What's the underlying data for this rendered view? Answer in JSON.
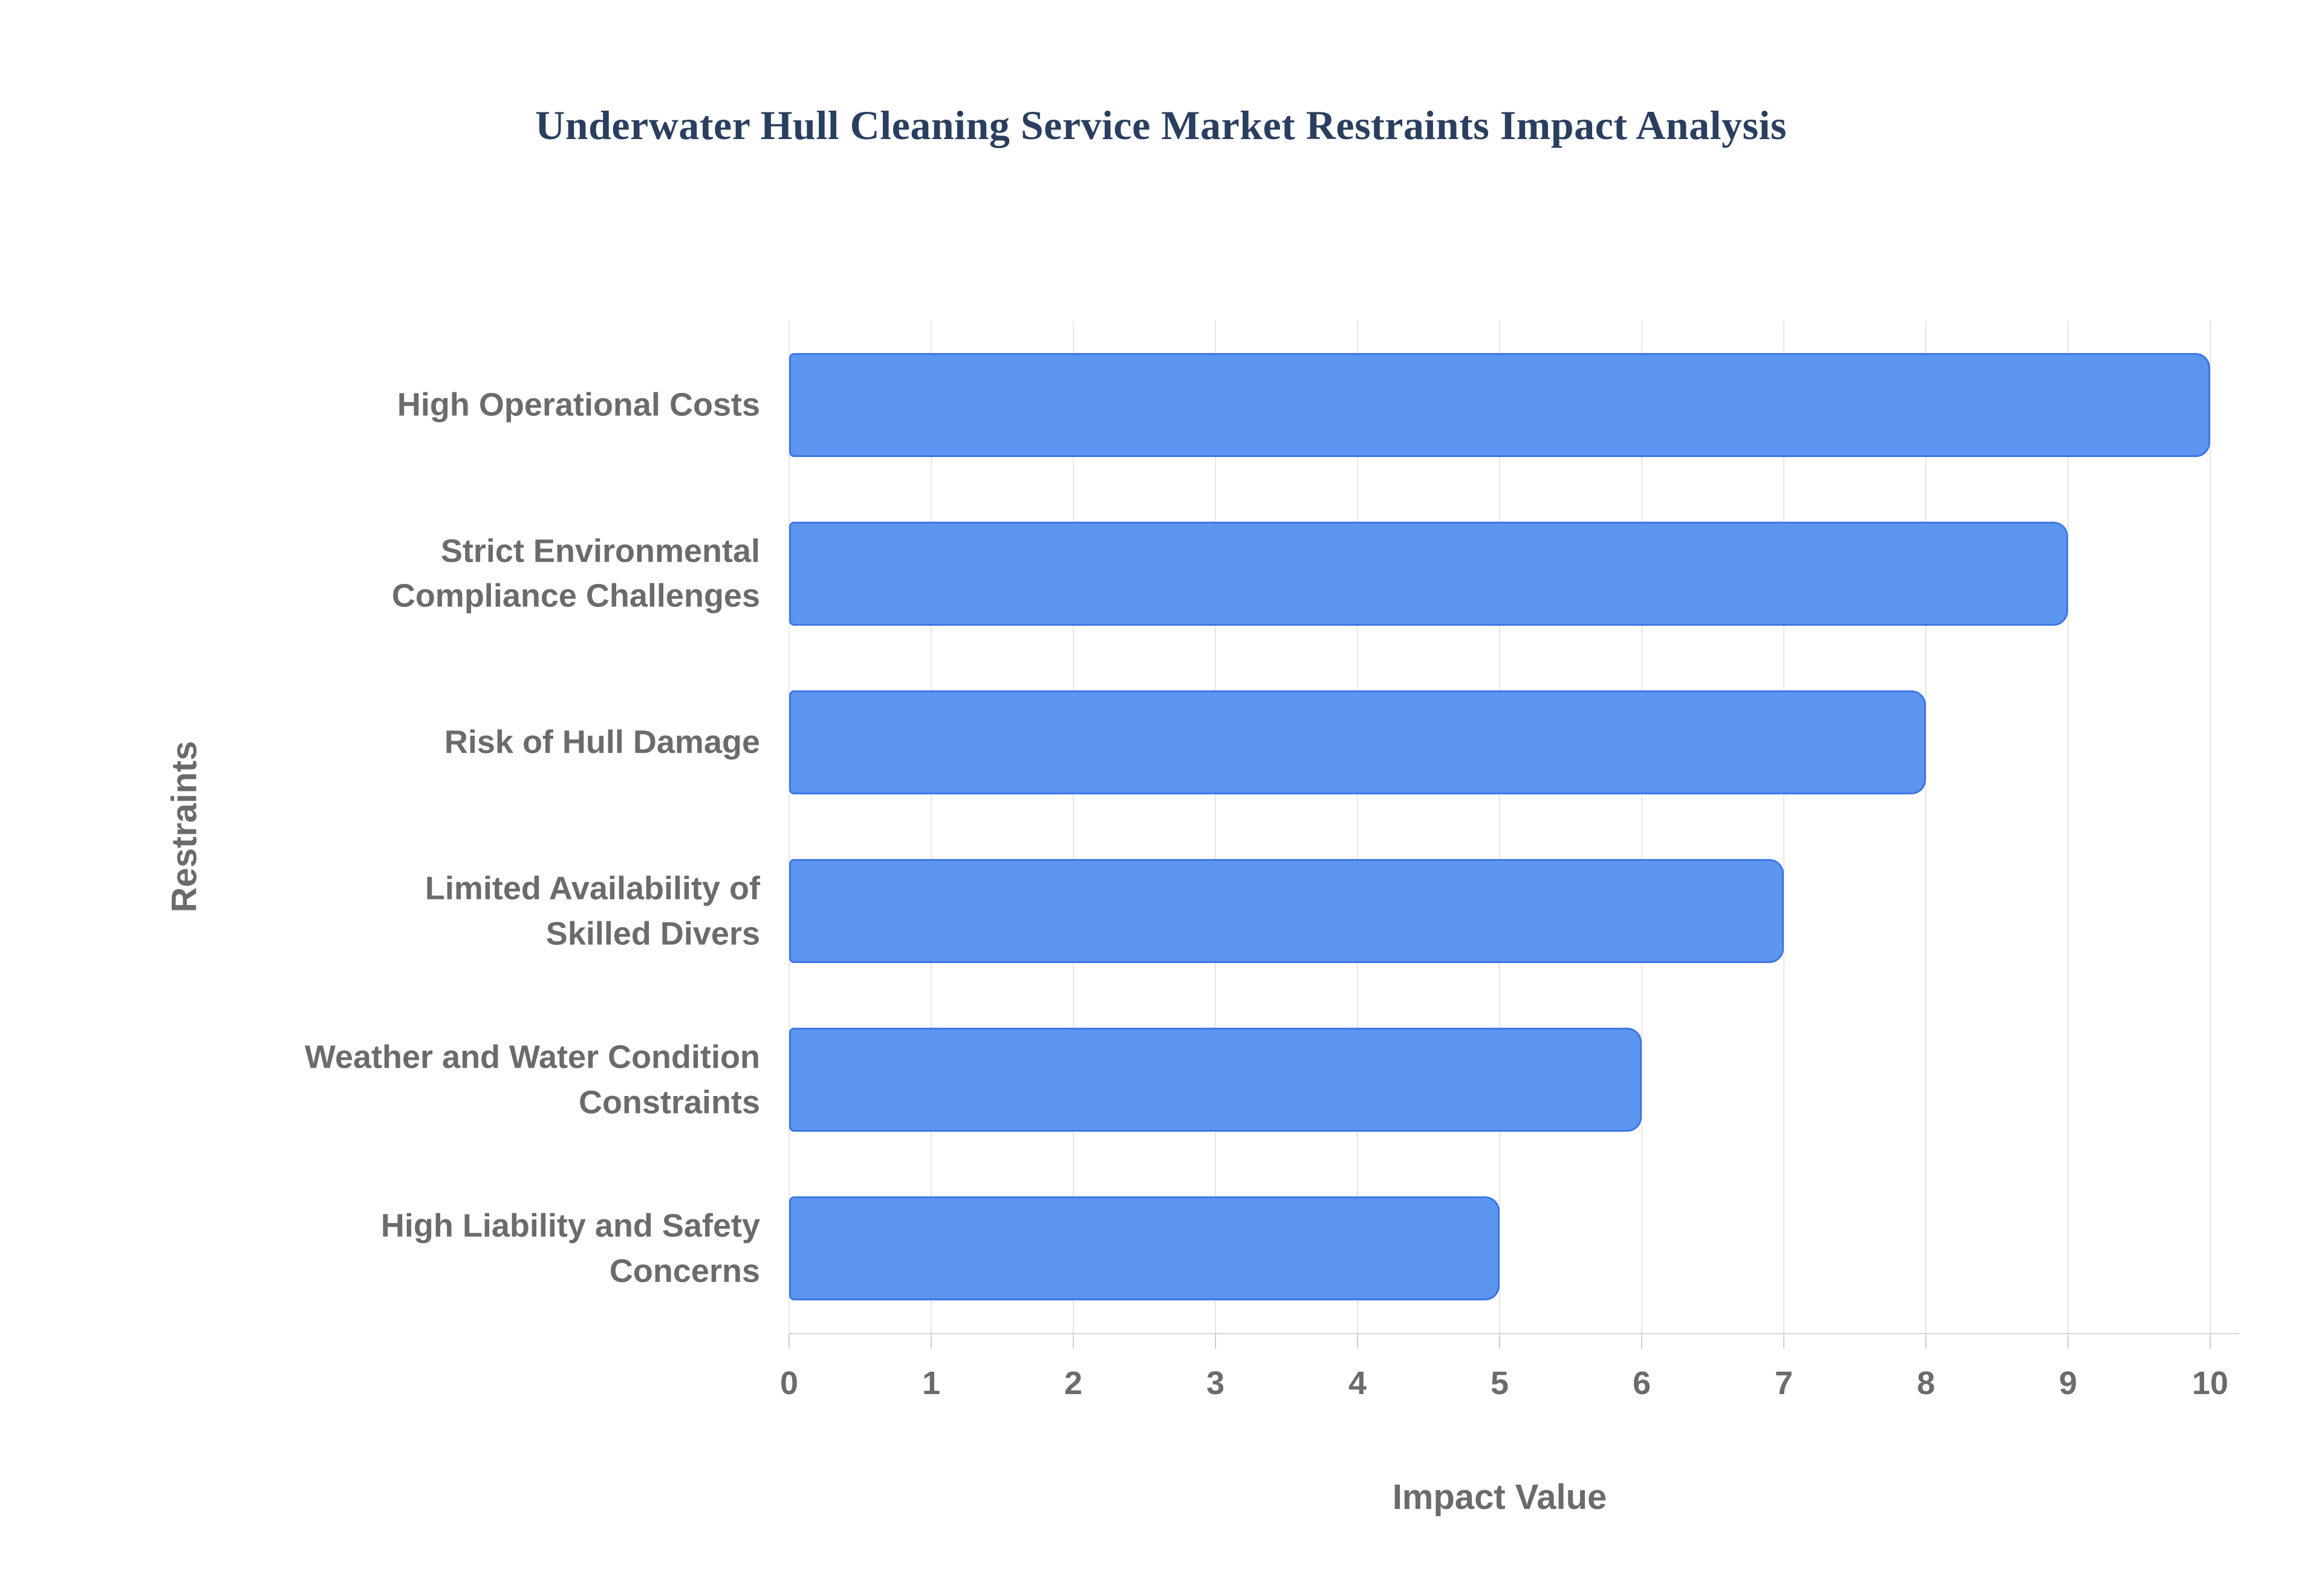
{
  "page": {
    "background": "#ffffff"
  },
  "chart_data": {
    "type": "bar",
    "orientation": "horizontal",
    "title": "Underwater Hull Cleaning Service Market Restraints Impact Analysis",
    "xlabel": "Impact Value",
    "ylabel": "Restraints",
    "categories": [
      "High Operational Costs",
      "Strict Environmental\nCompliance Challenges",
      "Risk of Hull Damage",
      "Limited Availability of\nSkilled Divers",
      "Weather and Water Condition\nConstraints",
      "High Liability and Safety\nConcerns"
    ],
    "values": [
      10,
      9,
      8,
      7,
      6,
      5
    ],
    "xlim": [
      0,
      10
    ],
    "xticks": [
      0,
      1,
      2,
      3,
      4,
      5,
      6,
      7,
      8,
      9,
      10
    ],
    "grid": true,
    "legend": "none",
    "colors": {
      "bar_fill": "#5c96f1",
      "bar_border": "#3e76e6",
      "gridline": "#e7e7e7",
      "axis_line": "#d4d4d4",
      "tick_mark": "#cfcfcf",
      "label_text": "#6b6b6b",
      "title_text": "#2a3f5f"
    }
  }
}
